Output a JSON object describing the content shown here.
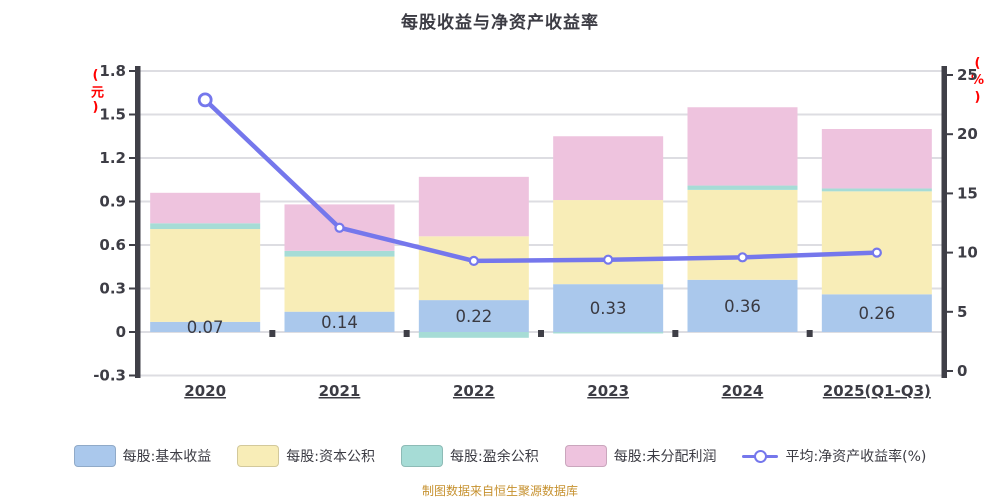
{
  "title": "每股收益与净资产收益率",
  "footer": "制图数据来自恒生聚源数据库",
  "axes": {
    "left_unit": "(元)",
    "right_unit": "(%)",
    "left_ticks": [
      1.8,
      1.5,
      1.2,
      0.9,
      0.6,
      0.3,
      0,
      -0.3
    ],
    "right_ticks": [
      25,
      20,
      15,
      10,
      5,
      0
    ]
  },
  "legend": {
    "items": [
      {
        "label": "每股:基本收益",
        "color": "#aac8ec",
        "type": "bar"
      },
      {
        "label": "每股:资本公积",
        "color": "#f8edb7",
        "type": "bar"
      },
      {
        "label": "每股:盈余公积",
        "color": "#a6dcd6",
        "type": "bar"
      },
      {
        "label": "每股:未分配利润",
        "color": "#eec3de",
        "type": "bar"
      },
      {
        "label": "平均:净资产收益率(%)",
        "color": "#7577ec",
        "type": "line"
      }
    ]
  },
  "chart_data": {
    "type": "bar",
    "stacked": true,
    "grid": true,
    "legend_position": "bottom",
    "categories": [
      "2020",
      "2021",
      "2022",
      "2023",
      "2024",
      "2025(Q1-Q3)"
    ],
    "series": [
      {
        "name": "每股:基本收益",
        "color": "#aac8ec",
        "values": [
          0.07,
          0.14,
          0.22,
          0.33,
          0.36,
          0.26
        ]
      },
      {
        "name": "每股:资本公积",
        "color": "#f8edb7",
        "values": [
          0.64,
          0.38,
          0.44,
          0.58,
          0.62,
          0.71
        ]
      },
      {
        "name": "每股:盈余公积",
        "color": "#a6dcd6",
        "values": [
          0.04,
          0.04,
          -0.04,
          -0.01,
          0.03,
          0.02
        ]
      },
      {
        "name": "每股:未分配利润",
        "color": "#eec3de",
        "values": [
          0.21,
          0.32,
          0.41,
          0.44,
          0.54,
          0.41
        ]
      }
    ],
    "bar_labels": [
      "0.07",
      "0.14",
      "0.22",
      "0.33",
      "0.36",
      "0.26"
    ],
    "line_series": {
      "name": "平均:净资产收益率(%)",
      "color": "#7577ec",
      "axis": "right",
      "values": [
        22.9,
        12.1,
        9.3,
        9.4,
        9.6,
        10.0
      ]
    },
    "left_axis": {
      "min": -0.3,
      "max": 1.8,
      "step": 0.3,
      "unit": "元"
    },
    "right_axis": {
      "min": 0,
      "max": 25,
      "step": 5,
      "unit": "%"
    }
  }
}
